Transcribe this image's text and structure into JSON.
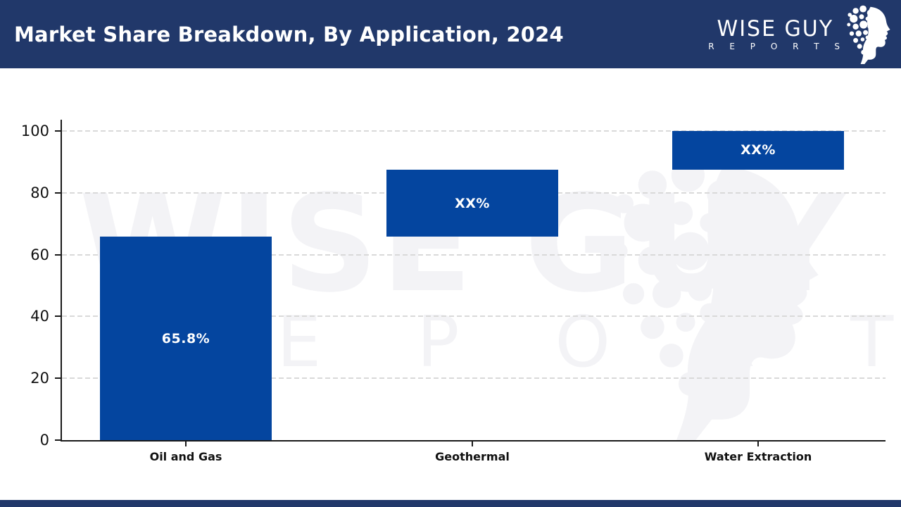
{
  "header": {
    "title": "Market Share Breakdown, By Application, 2024",
    "logo": {
      "wordmark": "WISE GUY",
      "subtext": "R E P O R T S"
    }
  },
  "watermark": {
    "wordmark": "WISE GUY",
    "subtext": "R E P O R T S"
  },
  "chart_data": {
    "type": "bar",
    "variant": "waterfall (floating stacked segments)",
    "title": "Market Share Breakdown, By Application, 2024",
    "categories": [
      "Oil and Gas",
      "Geothermal",
      "Water Extraction"
    ],
    "segments": [
      {
        "category": "Oil and Gas",
        "base": 0,
        "top": 65.8,
        "implied_value": 65.8,
        "label": "65.8%"
      },
      {
        "category": "Geothermal",
        "base": 65.8,
        "top": 87.5,
        "implied_value": 21.7,
        "label": "XX%"
      },
      {
        "category": "Water Extraction",
        "base": 87.5,
        "top": 100,
        "implied_value": 12.5,
        "label": "XX%"
      }
    ],
    "xlabel": "",
    "ylabel": "",
    "ylim": [
      0,
      100
    ],
    "yticks": [
      0,
      20,
      40,
      60,
      80,
      100
    ],
    "grid": "horizontal dashed",
    "legend": "none"
  },
  "colors": {
    "header_bg": "#21386a",
    "footer_bg": "#21386a",
    "bar": "#04459f",
    "bar_label": "#ffffff",
    "grid": "#d9d9d9",
    "axis": "#1a1a1a",
    "tick_label": "#111111",
    "watermark": "#f3f3f6",
    "page_bg": "#ffffff"
  }
}
